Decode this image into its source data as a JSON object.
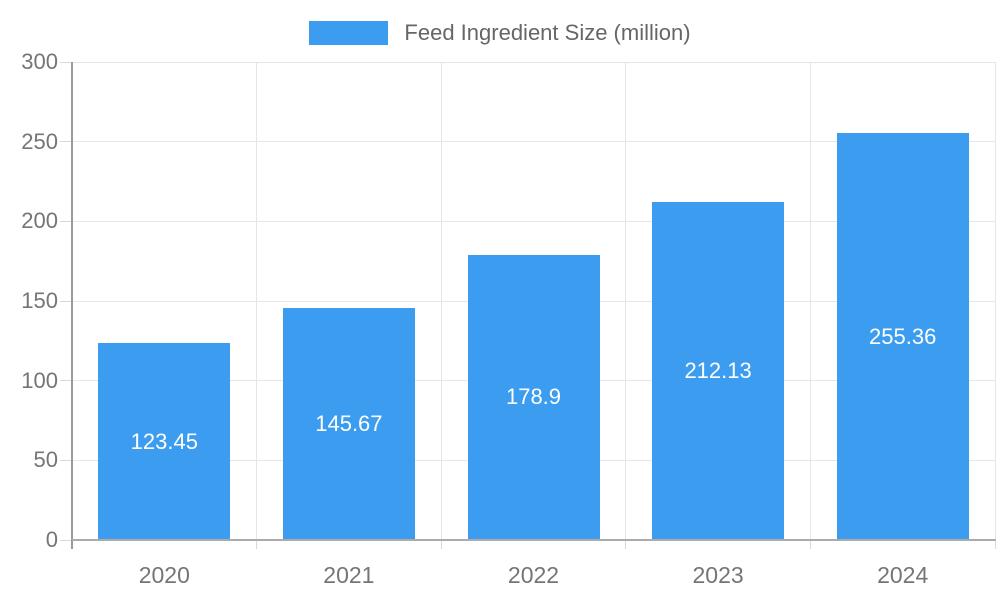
{
  "legend": {
    "label": "Feed Ingredient Size (million)"
  },
  "chart_data": {
    "type": "bar",
    "title": "",
    "xlabel": "",
    "ylabel": "",
    "categories": [
      "2020",
      "2021",
      "2022",
      "2023",
      "2024"
    ],
    "series": [
      {
        "name": "Feed Ingredient Size (million)",
        "values": [
          123.45,
          145.67,
          178.9,
          212.13,
          255.36
        ]
      }
    ],
    "value_labels": [
      "123.45",
      "145.67",
      "178.9",
      "212.13",
      "255.36"
    ],
    "ylim": [
      0,
      300
    ],
    "ytick_values": [
      0,
      50,
      100,
      150,
      200,
      250,
      300
    ],
    "yticks": [
      "0",
      "50",
      "100",
      "150",
      "200",
      "250",
      "300"
    ],
    "grid": true,
    "legend_position": "top"
  },
  "colors": {
    "bar": "#3b9cf0",
    "grid": "#e6e6e6",
    "y_axis_line": "#9a9a9a",
    "x_axis_line": "#ababab",
    "tick": "#d9d9d9",
    "axis_label": "#757575",
    "value_label": "#ffffff",
    "legend_text": "#666666",
    "background": "#ffffff"
  }
}
